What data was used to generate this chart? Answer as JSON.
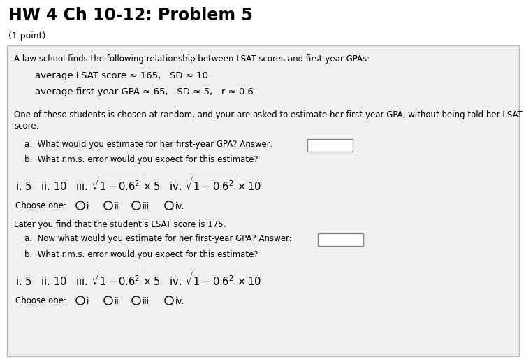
{
  "title": "HW 4 Ch 10-12: Problem 5",
  "subtitle": "(1 point)",
  "bg_color": "#ffffff",
  "box_bg": "#f0f0f0",
  "box_border": "#bbbbbb",
  "title_fontsize": 17,
  "subtitle_fontsize": 9,
  "body_fs": 8.5,
  "stats_fs": 9.5,
  "line1": "A law school finds the following relationship between LSAT scores and first-year GPAs:",
  "stats_line1": "average LSAT score ≈ 165,   SD ≈ 10",
  "stats_line2": "average first-year GPA ≈ 65,   SD ≈ 5,   r ≈ 0.6",
  "problem_intro": "One of these students is chosen at random, and your are asked to estimate her first-year GPA, without being told her LSAT\nscore.",
  "qa1": "a.  What would you estimate for her first-year GPA? Answer:",
  "qb1": "b.  What r.m.s. error would you expect for this estimate?",
  "choose_one": "Choose one:",
  "later_text": "Later you find that the student’s LSAT score is 175.",
  "qa2": "a.  Now what would you estimate for her first-year GPA? Answer:",
  "qb2": "b.  What r.m.s. error would you expect for this estimate?",
  "choose_one2": "Choose one:",
  "radio_labels": [
    "i",
    "ii",
    "iii",
    "iv."
  ]
}
